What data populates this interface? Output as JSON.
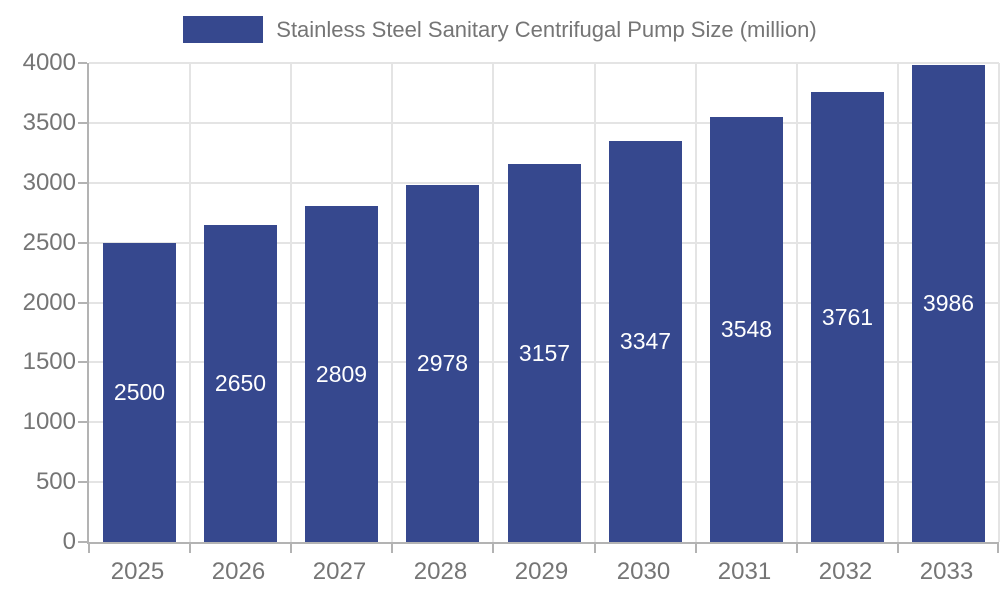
{
  "legend": {
    "swatch_color": "#36488E"
  },
  "chart_data": {
    "type": "bar",
    "title": "Stainless Steel Sanitary Centrifugal Pump Size (million)",
    "categories": [
      "2025",
      "2026",
      "2027",
      "2028",
      "2029",
      "2030",
      "2031",
      "2032",
      "2033"
    ],
    "values": [
      2500,
      2650,
      2809,
      2978,
      3157,
      3347,
      3548,
      3761,
      3986
    ],
    "series": [
      {
        "name": "Stainless Steel Sanitary Centrifugal Pump Size (million)",
        "values": [
          2500,
          2650,
          2809,
          2978,
          3157,
          3347,
          3548,
          3761,
          3986
        ]
      }
    ],
    "xlabel": "",
    "ylabel": "",
    "ylim": [
      0,
      4000
    ],
    "yticks": [
      0,
      500,
      1000,
      1500,
      2000,
      2500,
      3000,
      3500,
      4000
    ],
    "grid": true,
    "legend_position": "top",
    "colors": {
      "bar": "#36488E",
      "bar_label": "#FFFFFF",
      "axis_text": "#757575",
      "gridline": "#E4E4E4",
      "axis_line": "#B3B3B3",
      "background": "#FFFFFF"
    }
  }
}
